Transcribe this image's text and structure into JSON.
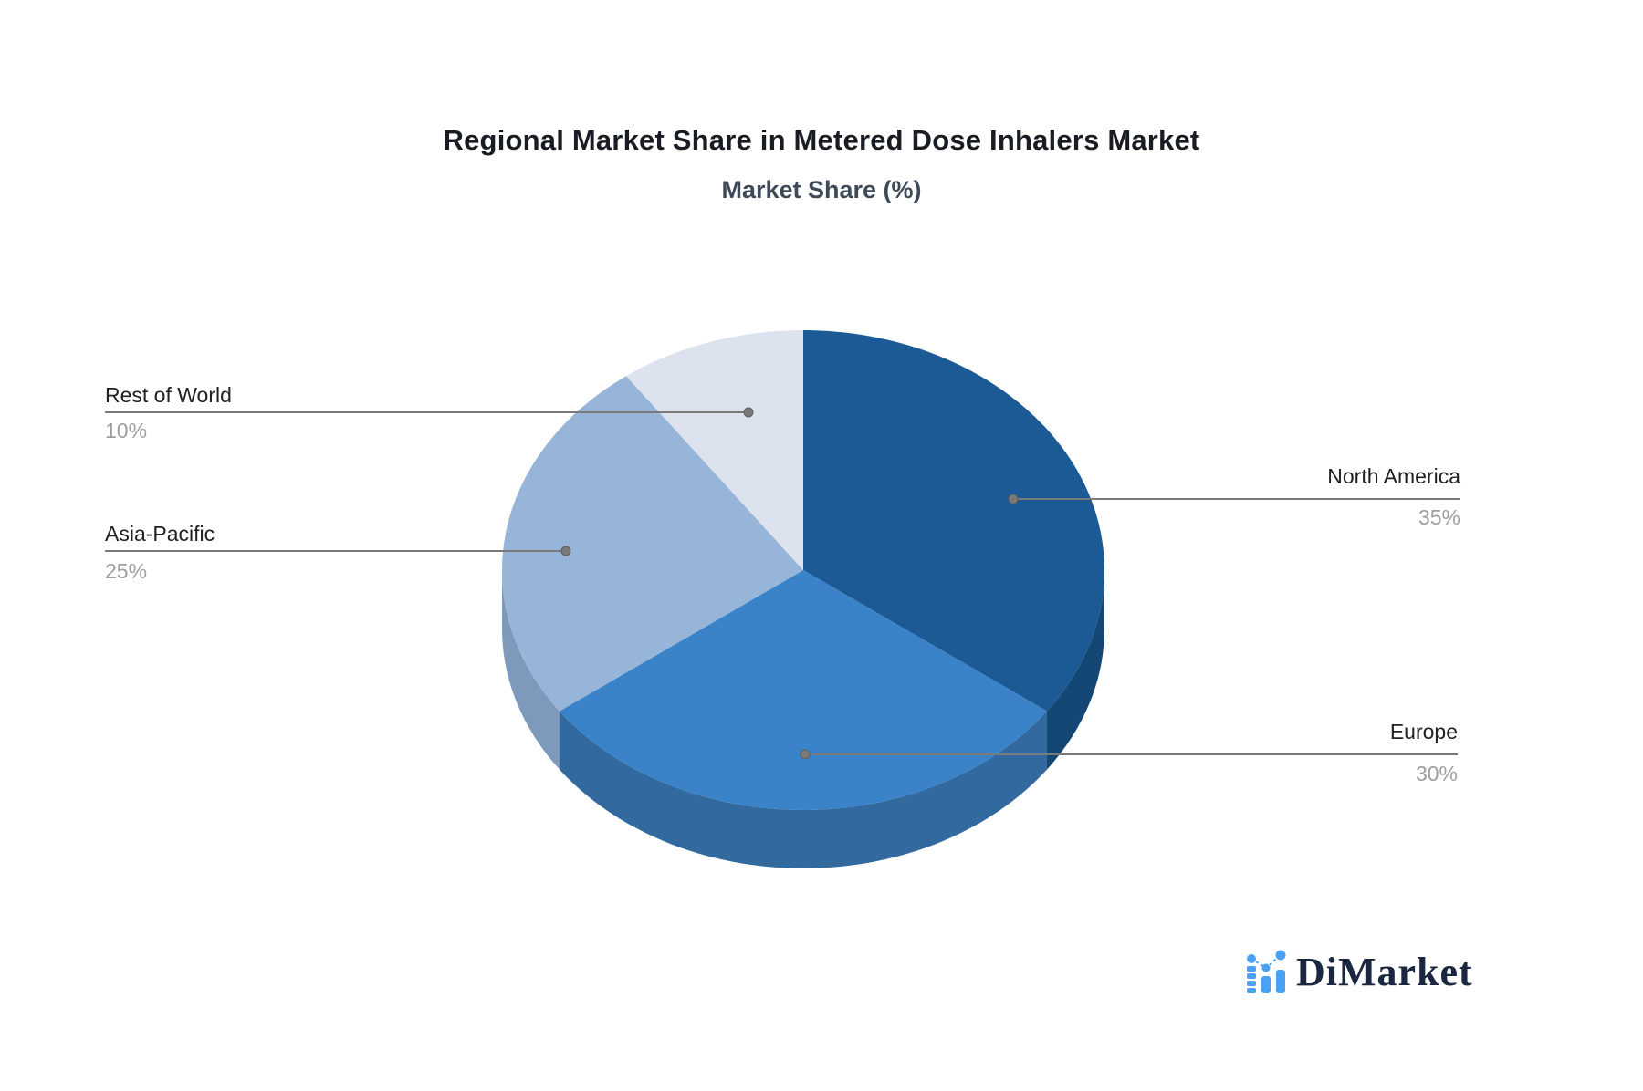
{
  "header": {
    "title": "Regional Market Share in Metered Dose Inhalers Market",
    "subtitle": "Market Share (%)"
  },
  "chart_data": {
    "type": "pie",
    "style": "3d",
    "title": "Regional Market Share in Metered Dose Inhalers Market",
    "subtitle": "Market Share (%)",
    "unit": "%",
    "start_angle_deg": 0,
    "direction": "clockwise",
    "legend_position": "callout-labels",
    "categories": [
      "North America",
      "Europe",
      "Asia-Pacific",
      "Rest of World"
    ],
    "values": [
      35,
      30,
      25,
      10
    ],
    "segments": [
      {
        "label": "North America",
        "value": 35,
        "value_label": "35%",
        "color": "#1b5a94",
        "side_color": "#144773"
      },
      {
        "label": "Europe",
        "value": 30,
        "value_label": "30%",
        "color": "#3a83c8",
        "side_color": "#326a9f"
      },
      {
        "label": "Asia-Pacific",
        "value": 25,
        "value_label": "25%",
        "color": "#97b5d8",
        "side_color": "#7d99bb"
      },
      {
        "label": "Rest of World",
        "value": 10,
        "value_label": "10%",
        "color": "#dce3ee",
        "side_color": "#b9c4d4"
      }
    ]
  },
  "branding": {
    "logo_text": "DiMarket",
    "logo_icon": "bar-chart-trend-icon",
    "logo_icon_color": "#4aa0f2",
    "logo_text_color": "#1b2740"
  },
  "colors": {
    "background": "#ffffff",
    "title": "#191c22",
    "subtitle": "#3f4a59",
    "callout_label": "#212121",
    "callout_percent": "#9e9e9e",
    "leader_line": "#7a7a7a"
  }
}
